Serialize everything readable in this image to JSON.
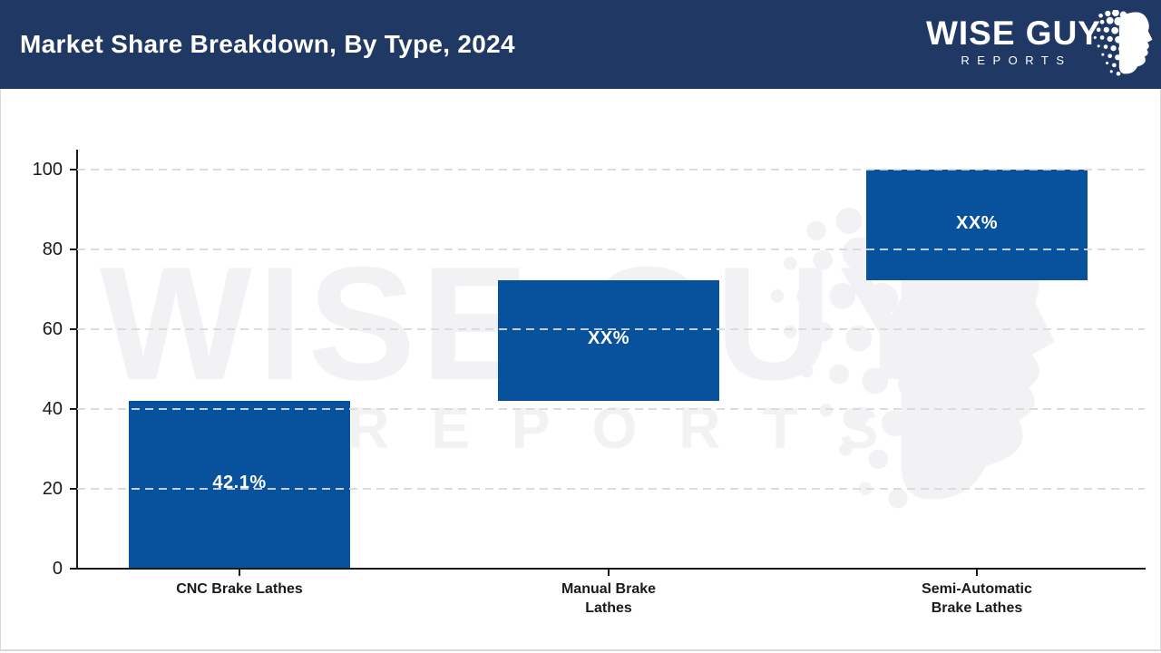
{
  "header": {
    "title": "Market Share Breakdown, By Type, 2024",
    "logo": {
      "line1": "WISE GUY",
      "line2": "REPORTS"
    }
  },
  "watermark": {
    "line1": "WISE GUY",
    "line2": "REPORTS"
  },
  "colors": {
    "header_bg": "#1f3864",
    "bar": "#08519c",
    "grid": "#d9d9d9",
    "axis": "#1a1a1a",
    "bar_label": "#ffffff",
    "watermark": "#f2f2f4"
  },
  "chart_data": {
    "type": "bar",
    "subtype": "waterfall",
    "title": "Market Share Breakdown, By Type, 2024",
    "categories": [
      "CNC Brake Lathes",
      "Manual Brake\nLathes",
      "Semi-Automatic\nBrake Lathes"
    ],
    "series": [
      {
        "name": "Market Share (%)",
        "segments": [
          {
            "category": "CNC Brake Lathes",
            "start": 0,
            "end": 42.1,
            "label": "42.1%"
          },
          {
            "category": "Manual Brake Lathes",
            "start": 42.1,
            "end": 72.3,
            "label": "XX%"
          },
          {
            "category": "Semi-Automatic Brake Lathes",
            "start": 72.3,
            "end": 100,
            "label": "XX%"
          }
        ]
      }
    ],
    "ylim": [
      0,
      100
    ],
    "yticks": [
      0,
      20,
      40,
      60,
      80,
      100
    ],
    "xlabel": "",
    "ylabel": "",
    "grid": "horizontal dashed, drawn above bars",
    "legend": "none"
  }
}
